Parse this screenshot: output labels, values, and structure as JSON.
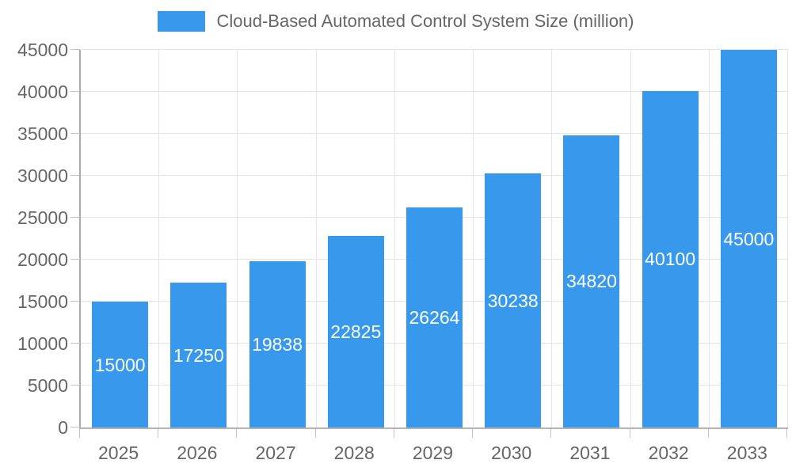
{
  "legend": {
    "label": "Cloud-Based Automated Control System Size (million)"
  },
  "colors": {
    "bar": "#3899EC",
    "axis_text": "#666666",
    "value_label": "#ffffff",
    "grid": "#e5e5e5",
    "axis_line": "#aaaaaa"
  },
  "chart_data": {
    "type": "bar",
    "title": "Cloud-Based Automated Control System Size (million)",
    "categories": [
      "2025",
      "2026",
      "2027",
      "2028",
      "2029",
      "2030",
      "2031",
      "2032",
      "2033"
    ],
    "values": [
      15000,
      17250,
      19838,
      22825,
      26264,
      30238,
      34820,
      40100,
      45000
    ],
    "series_name": "Cloud-Based Automated Control System Size (million)",
    "xlabel": "",
    "ylabel": "",
    "ylim": [
      0,
      45000
    ],
    "yticks": [
      0,
      5000,
      10000,
      15000,
      20000,
      25000,
      30000,
      35000,
      40000,
      45000
    ],
    "grid": true,
    "legend_position": "top",
    "value_label_position": "inside-center"
  }
}
